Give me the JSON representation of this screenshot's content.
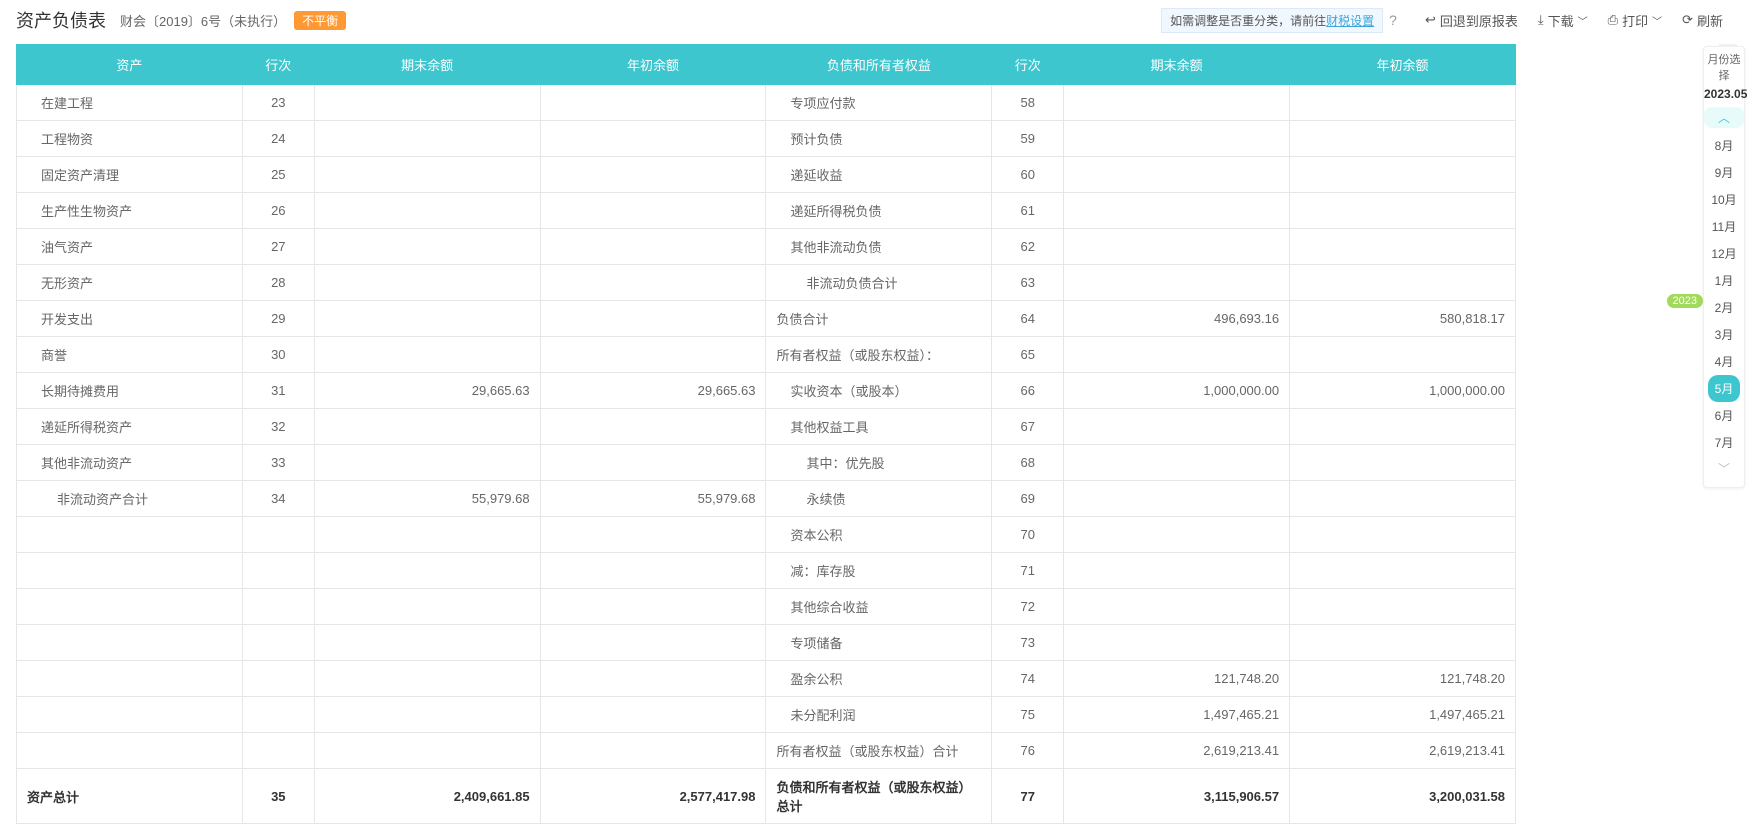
{
  "header": {
    "title": "资产负债表",
    "subtitle": "财会〔2019〕6号（未执行）",
    "badge": "不平衡",
    "notice_prefix": "如需调整是否重分类，请前往",
    "notice_link": "财税设置",
    "btn_back": "回退到原报表",
    "btn_download": "下载",
    "btn_print": "打印",
    "btn_refresh": "刷新"
  },
  "columns": {
    "asset": "资产",
    "row_l": "行次",
    "end_l": "期末余额",
    "begin_l": "年初余额",
    "liab": "负债和所有者权益",
    "row_r": "行次",
    "end_r": "期末余额",
    "begin_r": "年初余额"
  },
  "rows": [
    {
      "la": "在建工程",
      "ln": "23",
      "le": "",
      "lb": "",
      "indentL": 1,
      "ra": "专项应付款",
      "rn": "58",
      "re": "",
      "rb": "",
      "indentR": 1
    },
    {
      "la": "工程物资",
      "ln": "24",
      "le": "",
      "lb": "",
      "indentL": 1,
      "ra": "预计负债",
      "rn": "59",
      "re": "",
      "rb": "",
      "indentR": 1
    },
    {
      "la": "固定资产清理",
      "ln": "25",
      "le": "",
      "lb": "",
      "indentL": 1,
      "ra": "递延收益",
      "rn": "60",
      "re": "",
      "rb": "",
      "indentR": 1
    },
    {
      "la": "生产性生物资产",
      "ln": "26",
      "le": "",
      "lb": "",
      "indentL": 1,
      "ra": "递延所得税负债",
      "rn": "61",
      "re": "",
      "rb": "",
      "indentR": 1
    },
    {
      "la": "油气资产",
      "ln": "27",
      "le": "",
      "lb": "",
      "indentL": 1,
      "ra": "其他非流动负债",
      "rn": "62",
      "re": "",
      "rb": "",
      "indentR": 1
    },
    {
      "la": "无形资产",
      "ln": "28",
      "le": "",
      "lb": "",
      "indentL": 1,
      "ra": "非流动负债合计",
      "rn": "63",
      "re": "",
      "rb": "",
      "indentR": 2
    },
    {
      "la": "开发支出",
      "ln": "29",
      "le": "",
      "lb": "",
      "indentL": 1,
      "ra": "负债合计",
      "rn": "64",
      "re": "496,693.16",
      "rb": "580,818.17",
      "indentR": 0
    },
    {
      "la": "商誉",
      "ln": "30",
      "le": "",
      "lb": "",
      "indentL": 1,
      "ra": "所有者权益（或股东权益）：",
      "rn": "65",
      "re": "",
      "rb": "",
      "indentR": 0
    },
    {
      "la": "长期待摊费用",
      "ln": "31",
      "le": "29,665.63",
      "lb": "29,665.63",
      "indentL": 1,
      "ra": "实收资本（或股本）",
      "rn": "66",
      "re": "1,000,000.00",
      "rb": "1,000,000.00",
      "indentR": 1
    },
    {
      "la": "递延所得税资产",
      "ln": "32",
      "le": "",
      "lb": "",
      "indentL": 1,
      "ra": "其他权益工具",
      "rn": "67",
      "re": "",
      "rb": "",
      "indentR": 1
    },
    {
      "la": "其他非流动资产",
      "ln": "33",
      "le": "",
      "lb": "",
      "indentL": 1,
      "ra": "其中：优先股",
      "rn": "68",
      "re": "",
      "rb": "",
      "indentR": 2
    },
    {
      "la": "非流动资产合计",
      "ln": "34",
      "le": "55,979.68",
      "lb": "55,979.68",
      "indentL": 2,
      "ra": "永续债",
      "rn": "69",
      "re": "",
      "rb": "",
      "indentR": 2
    },
    {
      "la": "",
      "ln": "",
      "le": "",
      "lb": "",
      "indentL": 0,
      "ra": "资本公积",
      "rn": "70",
      "re": "",
      "rb": "",
      "indentR": 1
    },
    {
      "la": "",
      "ln": "",
      "le": "",
      "lb": "",
      "indentL": 0,
      "ra": "减：库存股",
      "rn": "71",
      "re": "",
      "rb": "",
      "indentR": 1
    },
    {
      "la": "",
      "ln": "",
      "le": "",
      "lb": "",
      "indentL": 0,
      "ra": "其他综合收益",
      "rn": "72",
      "re": "",
      "rb": "",
      "indentR": 1
    },
    {
      "la": "",
      "ln": "",
      "le": "",
      "lb": "",
      "indentL": 0,
      "ra": "专项储备",
      "rn": "73",
      "re": "",
      "rb": "",
      "indentR": 1
    },
    {
      "la": "",
      "ln": "",
      "le": "",
      "lb": "",
      "indentL": 0,
      "ra": "盈余公积",
      "rn": "74",
      "re": "121,748.20",
      "rb": "121,748.20",
      "indentR": 1
    },
    {
      "la": "",
      "ln": "",
      "le": "",
      "lb": "",
      "indentL": 0,
      "ra": "未分配利润",
      "rn": "75",
      "re": "1,497,465.21",
      "rb": "1,497,465.21",
      "indentR": 1
    },
    {
      "la": "",
      "ln": "",
      "le": "",
      "lb": "",
      "indentL": 0,
      "ra": "所有者权益（或股东权益）合计",
      "rn": "76",
      "re": "2,619,213.41",
      "rb": "2,619,213.41",
      "indentR": 0
    }
  ],
  "total": {
    "la": "资产总计",
    "ln": "35",
    "le": "2,409,661.85",
    "lb": "2,577,417.98",
    "ra": "负债和所有者权益（或股东权益）总计",
    "rn": "77",
    "re": "3,115,906.57",
    "rb": "3,200,031.58"
  },
  "month_panel": {
    "label": "月份选择",
    "current": "2023.05",
    "year_tag": "2023",
    "months": [
      "8月",
      "9月",
      "10月",
      "11月",
      "12月",
      "1月",
      "2月",
      "3月",
      "4月",
      "5月",
      "6月",
      "7月"
    ],
    "selected_index": 9
  }
}
